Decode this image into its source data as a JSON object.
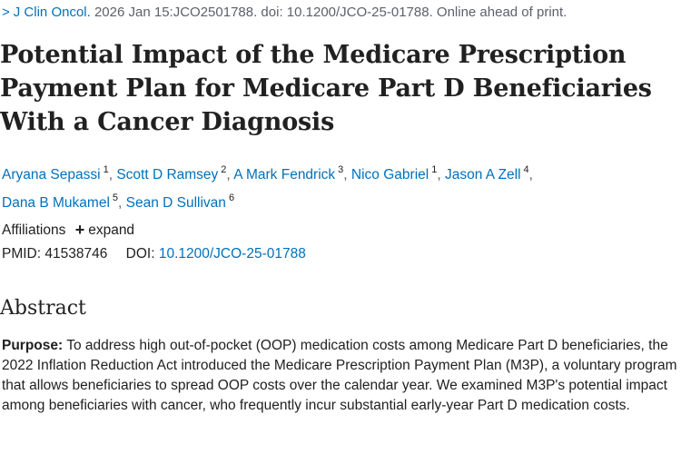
{
  "citation": {
    "chevron": ">",
    "journal": "J Clin Oncol.",
    "details": " 2026 Jan 15:JCO2501788. doi: 10.1200/JCO-25-01788. Online ahead of print."
  },
  "title": "Potential Impact of the Medicare Prescription Payment Plan for Medicare Part D Beneficiaries With a Cancer Diagnosis",
  "authors": [
    {
      "name": "Aryana Sepassi",
      "aff": "1"
    },
    {
      "name": "Scott D Ramsey",
      "aff": "2"
    },
    {
      "name": "A Mark Fendrick",
      "aff": "3"
    },
    {
      "name": "Nico Gabriel",
      "aff": "1"
    },
    {
      "name": "Jason A Zell",
      "aff": "4"
    },
    {
      "name": "Dana B Mukamel",
      "aff": "5"
    },
    {
      "name": "Sean D Sullivan",
      "aff": "6"
    }
  ],
  "affiliations": {
    "label": "Affiliations",
    "expand_label": "expand"
  },
  "ids": {
    "pmid_label": "PMID:",
    "pmid": "41538746",
    "doi_label": "DOI:",
    "doi": "10.1200/JCO-25-01788"
  },
  "abstract": {
    "heading": "Abstract",
    "purpose_label": "Purpose:",
    "purpose_text": " To address high out-of-pocket (OOP) medication costs among Medicare Part D beneficiaries, the 2022 Inflation Reduction Act introduced the Medicare Prescription Payment Plan (M3P), a voluntary program that allows beneficiaries to spread OOP costs over the calendar year. We examined M3P's potential impact among beneficiaries with cancer, who frequently incur substantial early-year Part D medication costs."
  },
  "colors": {
    "link": "#0071bc",
    "text": "#212121",
    "muted": "#5b616b"
  },
  "icons": {
    "chevron": "chevron-right-icon",
    "expand": "plus-icon"
  }
}
